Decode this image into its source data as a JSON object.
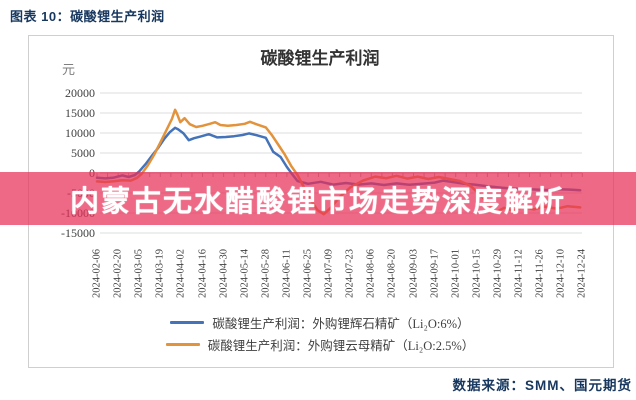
{
  "page": {
    "header": "图表 10：碳酸锂生产利润",
    "source": "数据来源：SMM、国元期货"
  },
  "banner": {
    "text": "内蒙古无水醋酸锂市场走势深度解析",
    "bg_color": "#e72f58",
    "text_color": "#ffffff"
  },
  "chart_data": {
    "type": "line",
    "title": "碳酸锂生产利润",
    "ylabel": "元",
    "ylim": [
      -15000,
      20000
    ],
    "yticks": [
      20000,
      15000,
      10000,
      5000,
      0,
      -5000,
      -10000,
      -15000
    ],
    "grid": true,
    "legend_position": "bottom",
    "categories": [
      "2024-02-06",
      "2024-02-20",
      "2024-03-05",
      "2024-03-19",
      "2024-04-02",
      "2024-04-16",
      "2024-04-30",
      "2024-05-14",
      "2024-05-28",
      "2024-06-11",
      "2024-06-25",
      "2024-07-09",
      "2024-07-23",
      "2024-08-06",
      "2024-08-20",
      "2024-09-03",
      "2024-09-17",
      "2024-10-01",
      "2024-10-15",
      "2024-10-29",
      "2024-11-12",
      "2024-11-26",
      "2024-12-10",
      "2024-12-24"
    ],
    "series": [
      {
        "name": "碳酸锂生产利润：外购锂辉石精矿（Li₂O:6%）",
        "color": "#4573b9",
        "points": [
          [
            0,
            -1200
          ],
          [
            0.4,
            -1350
          ],
          [
            0.8,
            -1150
          ],
          [
            1.2,
            -600
          ],
          [
            1.5,
            -1000
          ],
          [
            1.8,
            -500
          ],
          [
            2.0,
            400
          ],
          [
            2.3,
            2200
          ],
          [
            2.6,
            4300
          ],
          [
            2.9,
            6300
          ],
          [
            3.2,
            8600
          ],
          [
            3.45,
            10200
          ],
          [
            3.7,
            11300
          ],
          [
            3.85,
            10900
          ],
          [
            4.1,
            9900
          ],
          [
            4.35,
            8200
          ],
          [
            4.6,
            8700
          ],
          [
            4.9,
            9100
          ],
          [
            5.3,
            9700
          ],
          [
            5.7,
            8900
          ],
          [
            6.1,
            9000
          ],
          [
            6.5,
            9200
          ],
          [
            6.9,
            9500
          ],
          [
            7.2,
            9900
          ],
          [
            7.6,
            9400
          ],
          [
            8.0,
            8800
          ],
          [
            8.35,
            5300
          ],
          [
            8.7,
            4000
          ],
          [
            9.0,
            1500
          ],
          [
            9.25,
            -300
          ],
          [
            9.5,
            -2000
          ],
          [
            10.0,
            -2700
          ],
          [
            10.6,
            -2200
          ],
          [
            11.2,
            -2900
          ],
          [
            11.8,
            -2500
          ],
          [
            12.4,
            -2900
          ],
          [
            13.0,
            -2600
          ],
          [
            13.6,
            -3000
          ],
          [
            14.2,
            -2600
          ],
          [
            14.8,
            -2950
          ],
          [
            15.4,
            -2700
          ],
          [
            16.0,
            -2400
          ],
          [
            16.4,
            -1900
          ],
          [
            16.9,
            -2300
          ],
          [
            17.4,
            -2700
          ],
          [
            17.9,
            -2900
          ],
          [
            18.5,
            -3300
          ],
          [
            19.2,
            -3700
          ],
          [
            19.9,
            -3950
          ],
          [
            20.6,
            -4100
          ],
          [
            21.3,
            -4250
          ],
          [
            21.9,
            -4050
          ],
          [
            22.4,
            -4150
          ],
          [
            22.9,
            -4300
          ]
        ]
      },
      {
        "name": "碳酸锂生产利润：外购锂云母精矿（Li₂O:2.5%）",
        "color": "#e2933b",
        "points": [
          [
            0,
            -2100
          ],
          [
            0.4,
            -2250
          ],
          [
            0.8,
            -2050
          ],
          [
            1.2,
            -1800
          ],
          [
            1.6,
            -1900
          ],
          [
            1.9,
            -1200
          ],
          [
            2.1,
            -300
          ],
          [
            2.4,
            1800
          ],
          [
            2.7,
            4500
          ],
          [
            3.0,
            7600
          ],
          [
            3.3,
            10800
          ],
          [
            3.55,
            13500
          ],
          [
            3.7,
            15800
          ],
          [
            3.8,
            14700
          ],
          [
            3.95,
            12700
          ],
          [
            4.15,
            13700
          ],
          [
            4.4,
            12200
          ],
          [
            4.7,
            11500
          ],
          [
            5.0,
            11800
          ],
          [
            5.35,
            12300
          ],
          [
            5.6,
            12700
          ],
          [
            5.85,
            12000
          ],
          [
            6.2,
            11800
          ],
          [
            6.6,
            12000
          ],
          [
            7.0,
            12300
          ],
          [
            7.25,
            12800
          ],
          [
            7.6,
            12100
          ],
          [
            8.0,
            11400
          ],
          [
            8.3,
            9400
          ],
          [
            8.6,
            7000
          ],
          [
            8.9,
            4600
          ],
          [
            9.2,
            1800
          ],
          [
            9.5,
            -500
          ],
          [
            9.8,
            -3500
          ],
          [
            10.1,
            -6500
          ],
          [
            10.45,
            -9300
          ],
          [
            10.75,
            -10300
          ],
          [
            11.1,
            -8600
          ],
          [
            11.5,
            -6000
          ],
          [
            12.0,
            -3600
          ],
          [
            12.6,
            -1900
          ],
          [
            13.2,
            -900
          ],
          [
            13.7,
            -1300
          ],
          [
            14.2,
            -700
          ],
          [
            14.7,
            -1400
          ],
          [
            15.2,
            -900
          ],
          [
            15.7,
            -1500
          ],
          [
            16.2,
            -1000
          ],
          [
            16.7,
            -1500
          ],
          [
            17.2,
            -2000
          ],
          [
            17.7,
            -3200
          ],
          [
            18.1,
            -5200
          ],
          [
            18.5,
            -7400
          ],
          [
            18.9,
            -9800
          ],
          [
            19.3,
            -8700
          ],
          [
            19.7,
            -9400
          ],
          [
            20.2,
            -8500
          ],
          [
            20.7,
            -9100
          ],
          [
            21.2,
            -8400
          ],
          [
            21.8,
            -8900
          ],
          [
            22.3,
            -8300
          ],
          [
            22.9,
            -8600
          ]
        ]
      }
    ]
  }
}
